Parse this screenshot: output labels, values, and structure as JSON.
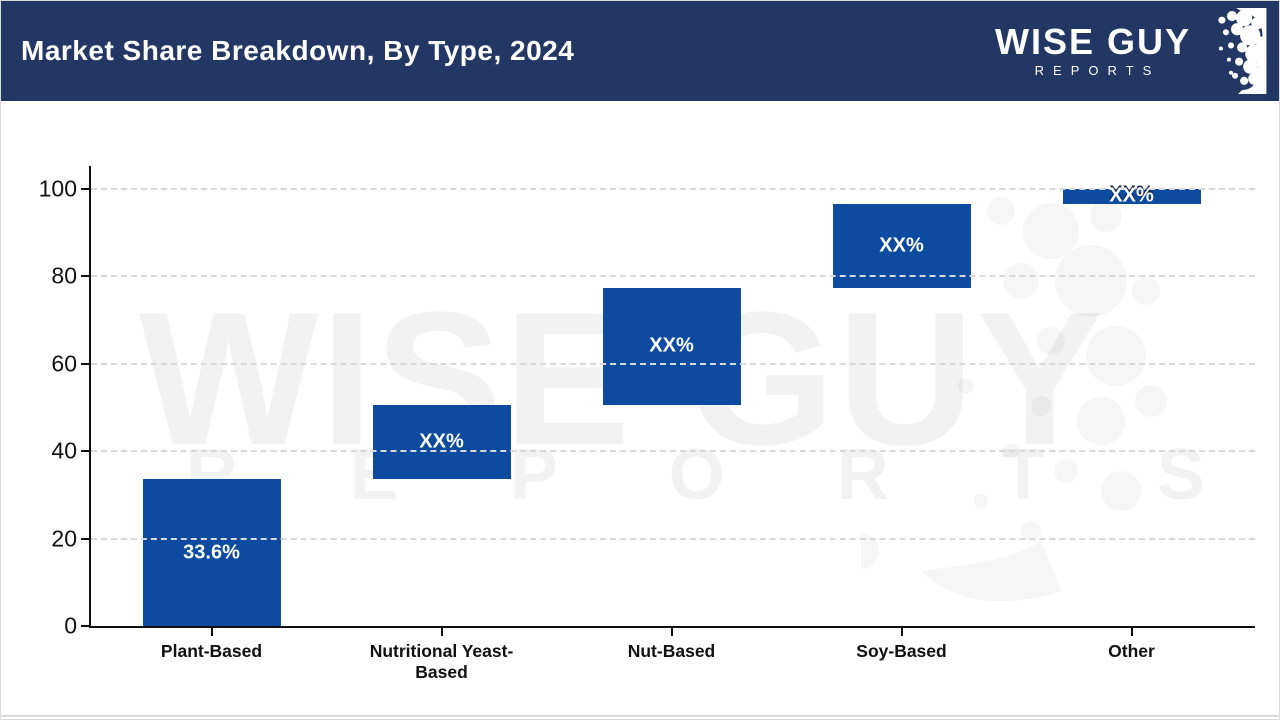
{
  "header": {
    "title": "Market Share Breakdown, By Type, 2024",
    "brand_line1": "WISE GUY",
    "brand_line2": "REPORTS",
    "background_color": "#223763"
  },
  "watermark": {
    "line1": "WISE GUY",
    "line2": "R E P O R T S"
  },
  "chart_data": {
    "type": "bar",
    "subtype": "waterfall",
    "title": "Market Share Breakdown, By Type, 2024",
    "categories": [
      "Plant-Based",
      "Nutritional Yeast-Based",
      "Nut-Based",
      "Soy-Based",
      "Other"
    ],
    "segments": [
      {
        "category": "Plant-Based",
        "start": 0,
        "end": 33.6,
        "label": "33.6%"
      },
      {
        "category": "Nutritional Yeast-Based",
        "start": 33.6,
        "end": 50.5,
        "label": "XX%"
      },
      {
        "category": "Nut-Based",
        "start": 50.5,
        "end": 77.3,
        "label": "XX%"
      },
      {
        "category": "Soy-Based",
        "start": 77.3,
        "end": 96.4,
        "label": "XX%"
      },
      {
        "category": "Other",
        "start": 96.4,
        "end": 100,
        "label": "XX%"
      }
    ],
    "ylabel": "",
    "xlabel": "",
    "yticks": [
      "0",
      "20",
      "40",
      "60",
      "80",
      "100"
    ],
    "ytick_values": [
      0,
      20,
      40,
      60,
      80,
      100
    ],
    "ylim": [
      0,
      105
    ],
    "bar_color": "#0c4ba0",
    "bar_label_color": "#ffffff",
    "grid": "horizontal-dashed",
    "gridline_color": "#d9d9d9",
    "legend": "none"
  }
}
